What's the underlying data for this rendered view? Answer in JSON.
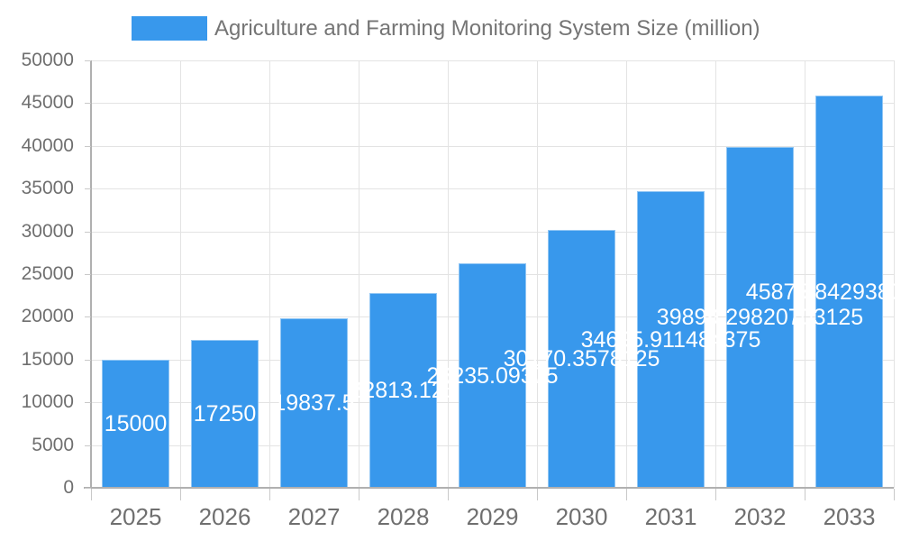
{
  "chart_data": {
    "type": "bar",
    "title": "Agriculture and Farming Monitoring System Size (million)",
    "xlabel": "",
    "ylabel": "",
    "categories": [
      "2025",
      "2026",
      "2027",
      "2028",
      "2029",
      "2030",
      "2031",
      "2032",
      "2033"
    ],
    "values": [
      15000,
      17250,
      19837.5,
      22813.125,
      26235.09375,
      30170.3578125,
      34695.911484375,
      39899.29820703125,
      45875.84293808594
    ],
    "bar_labels": [
      "15000",
      "17250",
      "19837.5",
      "22813.125",
      "26235.09375",
      "30170.3578125",
      "34695.911484375",
      "39899.29820703125",
      "45875.84293808594"
    ],
    "ylim": [
      0,
      50000
    ],
    "yticks": [
      0,
      5000,
      10000,
      15000,
      20000,
      25000,
      30000,
      35000,
      40000,
      45000,
      50000
    ],
    "grid": true,
    "legend_position": "top",
    "bar_color": "#3898EC",
    "bar_label_color": "#FFFFFF",
    "axis_text_color": "#6F6F6F",
    "grid_color": "#E3E3E3",
    "axis_line_color": "#B0B0B0"
  }
}
